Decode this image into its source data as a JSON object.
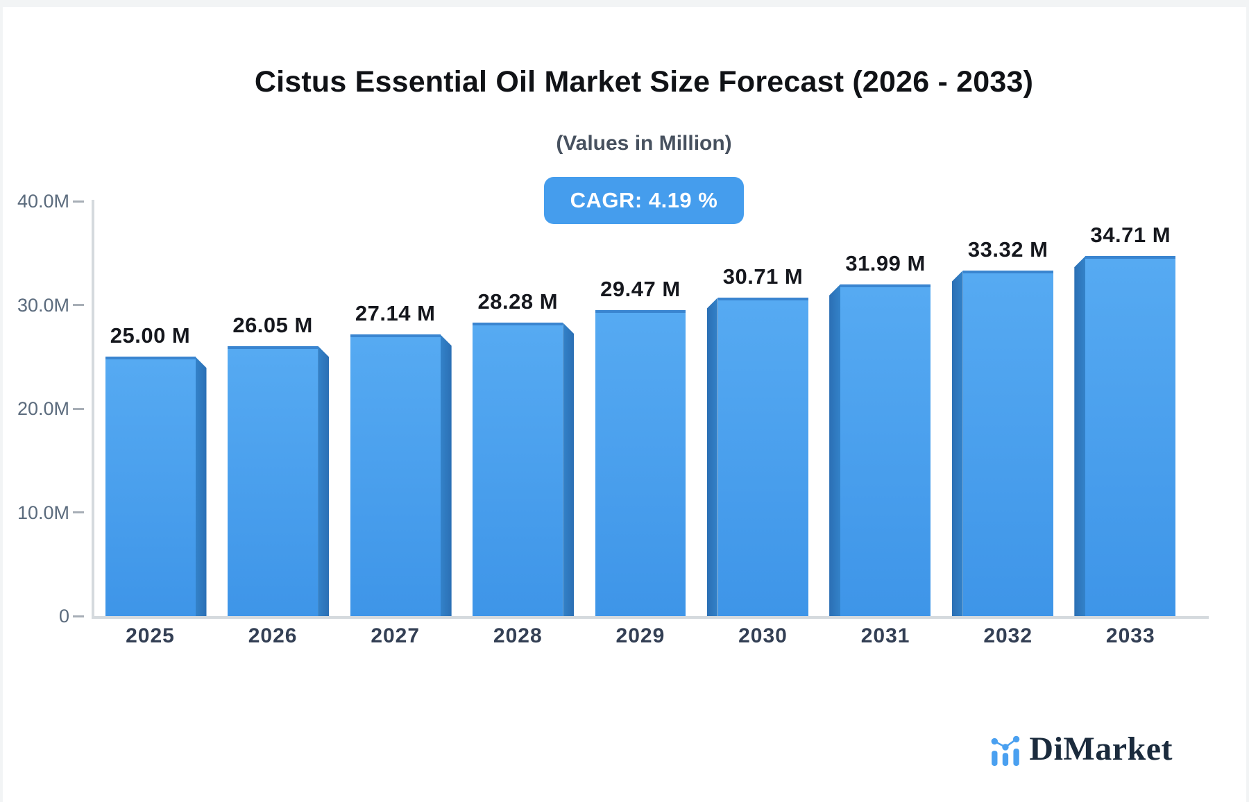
{
  "header": {
    "title": "Cistus Essential Oil Market Size Forecast (2026 - 2033)",
    "subtitle": "(Values in Million)",
    "cagr_label": "CAGR: 4.19 %"
  },
  "chart_data": {
    "type": "bar",
    "title": "Cistus Essential Oil Market Size Forecast (2026 - 2033)",
    "subtitle": "(Values in Million)",
    "cagr_percent": 4.19,
    "categories": [
      "2025",
      "2026",
      "2027",
      "2028",
      "2029",
      "2030",
      "2031",
      "2032",
      "2033"
    ],
    "values": [
      25.0,
      26.05,
      27.14,
      28.28,
      29.47,
      30.71,
      31.99,
      33.32,
      34.71
    ],
    "value_labels": [
      "25.00 M",
      "26.05 M",
      "27.14 M",
      "28.28 M",
      "29.47 M",
      "30.71 M",
      "31.99 M",
      "33.32 M",
      "34.71 M"
    ],
    "values_unit": "Million",
    "xlabel": "",
    "ylabel": "",
    "ylim": [
      0,
      40
    ],
    "yticks": [
      {
        "label": "0",
        "value": 0
      },
      {
        "label": "10.0M",
        "value": 10
      },
      {
        "label": "20.0M",
        "value": 20
      },
      {
        "label": "30.0M",
        "value": 30
      },
      {
        "label": "40.0M",
        "value": 40
      }
    ],
    "grid": false,
    "legend": false
  },
  "colors": {
    "accent_blue": "#459ded",
    "bar_face_top": "#56aaf2",
    "bar_face_bottom": "#3e95e8",
    "bar_side": "#2e77bd",
    "axis_line": "#d5dade",
    "y_label": "#5b6b7d",
    "x_label": "#333f54",
    "value_label": "#15171d",
    "title": "#101216",
    "logo_navy": "#1b2b3d",
    "logo_blue": "#4aa0f0",
    "badge_text": "#ffffff"
  },
  "logo": {
    "text": "DiMarket",
    "icon": "mini-bar-chart-with-trendline-icon"
  }
}
